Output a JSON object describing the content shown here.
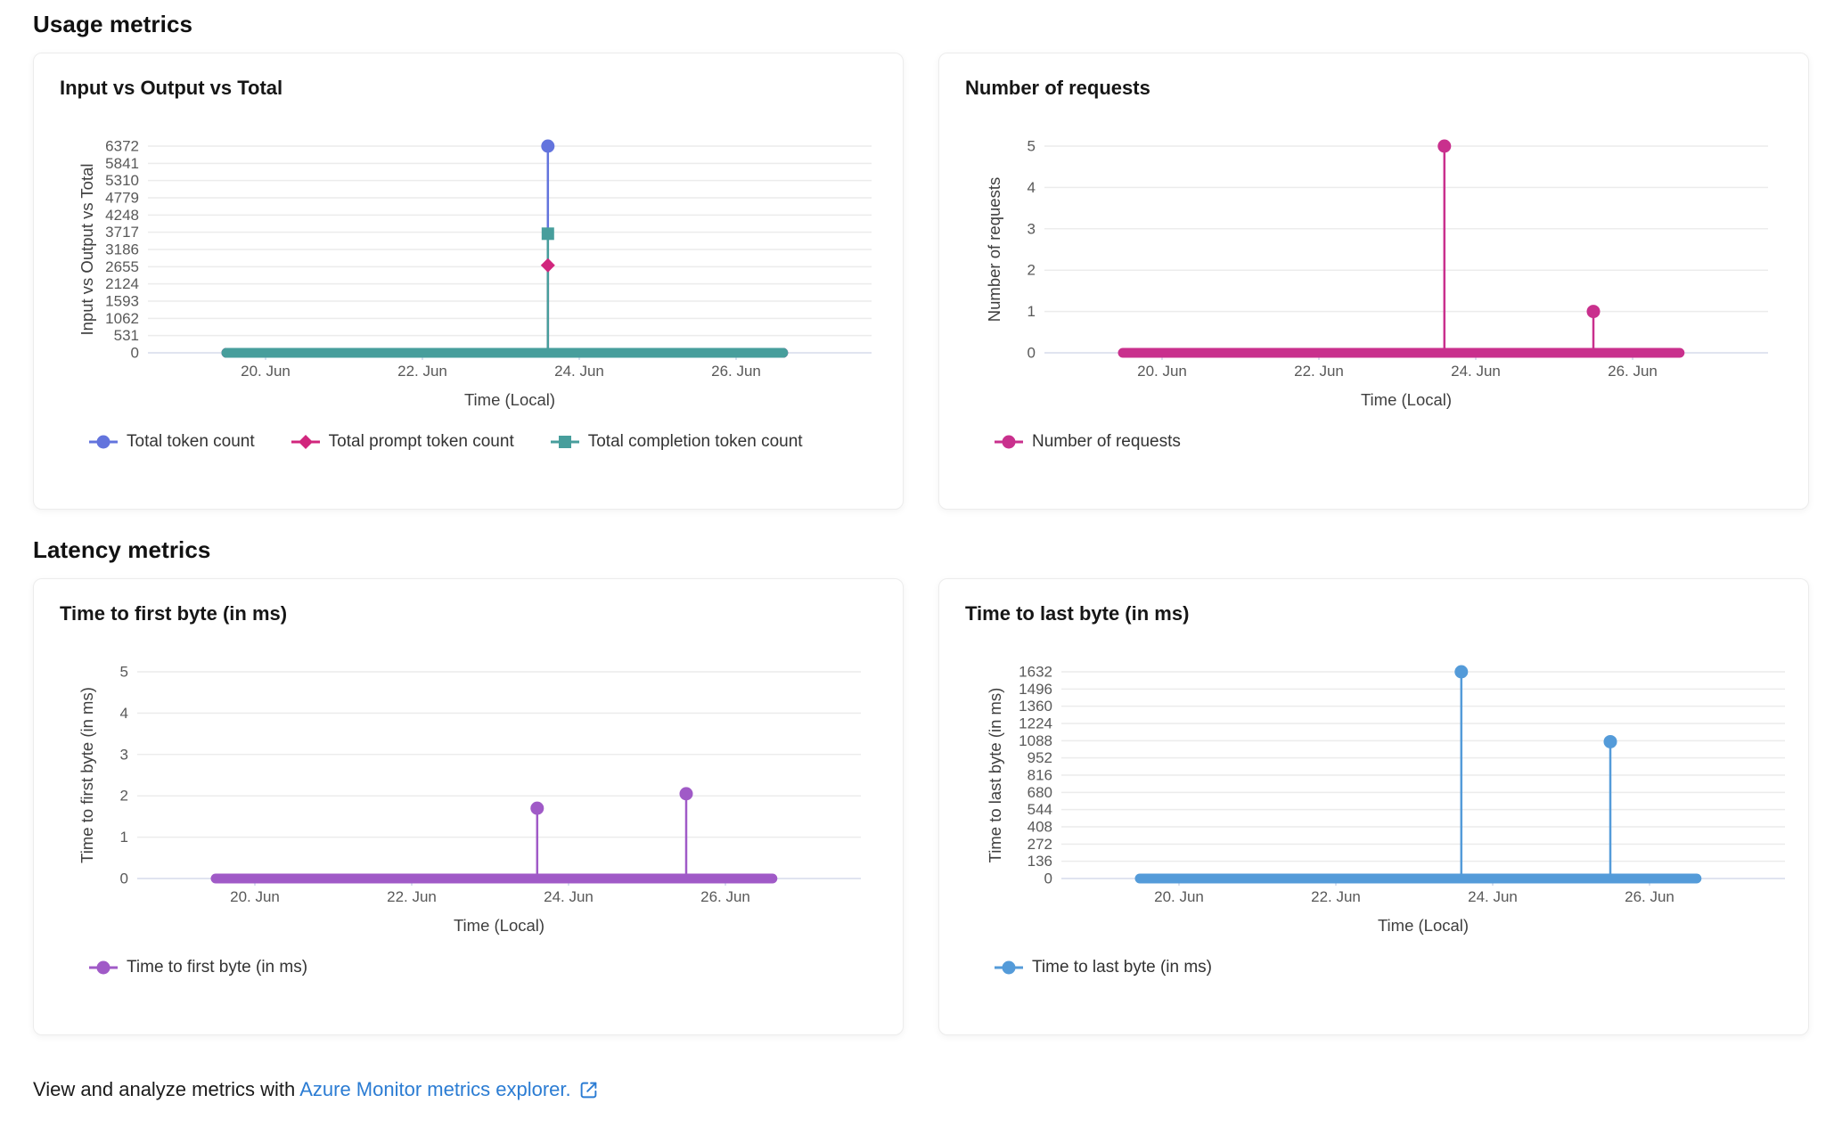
{
  "sections": {
    "usage": {
      "heading": "Usage metrics"
    },
    "latency": {
      "heading": "Latency metrics"
    }
  },
  "footer": {
    "prefix": "View and analyze metrics with",
    "link": "Azure Monitor metrics explorer.",
    "icon": "external-link-icon"
  },
  "colors": {
    "grid": "#ececec",
    "axis_line": "#d5dcec",
    "tick_mark": "#ccd6eb",
    "link": "#2b7cd3",
    "total_token": "#6374dd",
    "prompt_token": "#d1267d",
    "completion_token": "#479e9c",
    "requests": "#c9308d",
    "time_to_first_byte": "#a05ac7",
    "time_to_last_byte": "#549bd9"
  },
  "chart_data": [
    {
      "type": "line",
      "title": "Input vs Output vs Total",
      "xlabel": "Time (Local)",
      "ylabel": "Input vs Output vs Total",
      "grid": true,
      "legend_position": "bottom-left",
      "x_ticks": [
        {
          "day": 20,
          "label": "20. Jun"
        },
        {
          "day": 22,
          "label": "22. Jun"
        },
        {
          "day": 24,
          "label": "24. Jun"
        },
        {
          "day": 26,
          "label": "26. Jun"
        }
      ],
      "x_window": {
        "data_start_day": 19.5,
        "data_end_day": 26.6
      },
      "y_ticks": [
        0,
        531,
        1062,
        1593,
        2124,
        2655,
        3186,
        3717,
        4248,
        4779,
        5310,
        5841,
        6372
      ],
      "ylim": [
        0,
        6372
      ],
      "series": [
        {
          "name": "Total token count",
          "color": "#6374dd",
          "marker": "circle",
          "baseline_value": 0,
          "spikes": [
            {
              "day": 23.6,
              "value": 6372
            }
          ]
        },
        {
          "name": "Total prompt token count",
          "color": "#d1267d",
          "marker": "diamond",
          "baseline_value": 0,
          "spikes": [
            {
              "day": 23.6,
              "value": 2700
            }
          ]
        },
        {
          "name": "Total completion token count",
          "color": "#479e9c",
          "marker": "square",
          "baseline_value": 0,
          "spikes": [
            {
              "day": 23.6,
              "value": 3672
            }
          ]
        }
      ]
    },
    {
      "type": "line",
      "title": "Number of requests",
      "xlabel": "Time (Local)",
      "ylabel": "Number of requests",
      "grid": true,
      "legend_position": "bottom-left",
      "x_ticks": [
        {
          "day": 20,
          "label": "20. Jun"
        },
        {
          "day": 22,
          "label": "22. Jun"
        },
        {
          "day": 24,
          "label": "24. Jun"
        },
        {
          "day": 26,
          "label": "26. Jun"
        }
      ],
      "x_window": {
        "data_start_day": 19.5,
        "data_end_day": 26.6
      },
      "y_ticks": [
        0,
        1,
        2,
        3,
        4,
        5
      ],
      "ylim": [
        0,
        5
      ],
      "series": [
        {
          "name": "Number of requests",
          "color": "#c9308d",
          "marker": "circle",
          "baseline_value": 0,
          "spikes": [
            {
              "day": 23.6,
              "value": 5
            },
            {
              "day": 25.5,
              "value": 1
            }
          ]
        }
      ]
    },
    {
      "type": "line",
      "title": "Time to first byte (in ms)",
      "xlabel": "Time (Local)",
      "ylabel": "Time to first byte (in ms)",
      "grid": true,
      "legend_position": "bottom-left",
      "x_ticks": [
        {
          "day": 20,
          "label": "20. Jun"
        },
        {
          "day": 22,
          "label": "22. Jun"
        },
        {
          "day": 24,
          "label": "24. Jun"
        },
        {
          "day": 26,
          "label": "26. Jun"
        }
      ],
      "x_window": {
        "data_start_day": 19.5,
        "data_end_day": 26.6
      },
      "y_ticks": [
        0,
        1,
        2,
        3,
        4,
        5
      ],
      "ylim": [
        0,
        5
      ],
      "series": [
        {
          "name": "Time to first byte (in ms)",
          "color": "#a05ac7",
          "marker": "circle",
          "baseline_value": 0,
          "spikes": [
            {
              "day": 23.6,
              "value": 1.7
            },
            {
              "day": 25.5,
              "value": 2.05
            }
          ]
        }
      ]
    },
    {
      "type": "line",
      "title": "Time to last byte (in ms)",
      "xlabel": "Time (Local)",
      "ylabel": "Time to last byte (in ms)",
      "grid": true,
      "legend_position": "bottom-left",
      "x_ticks": [
        {
          "day": 20,
          "label": "20. Jun"
        },
        {
          "day": 22,
          "label": "22. Jun"
        },
        {
          "day": 24,
          "label": "24. Jun"
        },
        {
          "day": 26,
          "label": "26. Jun"
        }
      ],
      "x_window": {
        "data_start_day": 19.5,
        "data_end_day": 26.6
      },
      "y_ticks": [
        0,
        136,
        272,
        408,
        544,
        680,
        816,
        952,
        1088,
        1224,
        1360,
        1496,
        1632
      ],
      "ylim": [
        0,
        1632
      ],
      "series": [
        {
          "name": "Time to last byte (in ms)",
          "color": "#549bd9",
          "marker": "circle",
          "baseline_value": 0,
          "spikes": [
            {
              "day": 23.6,
              "value": 1632
            },
            {
              "day": 25.5,
              "value": 1080
            }
          ]
        }
      ]
    }
  ]
}
